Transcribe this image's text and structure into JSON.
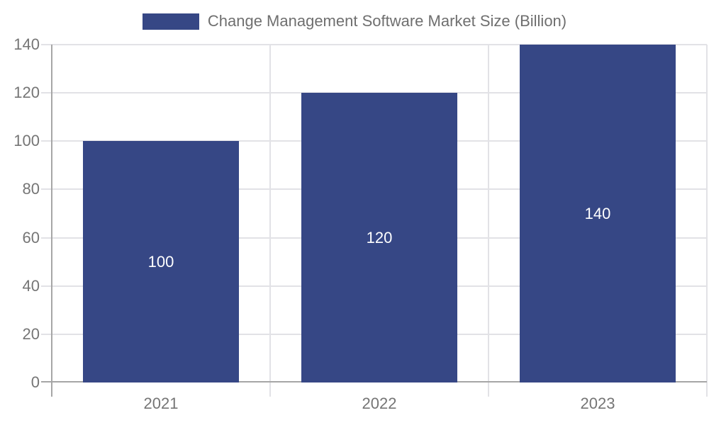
{
  "chart_data": {
    "type": "bar",
    "title": "Change Management Software Market Size (Billion)",
    "categories": [
      "2021",
      "2022",
      "2023"
    ],
    "values": [
      100,
      120,
      140
    ],
    "value_labels": [
      "100",
      "120",
      "140"
    ],
    "xlabel": "",
    "ylabel": "",
    "ylim": [
      0,
      140
    ],
    "yticks": [
      0,
      20,
      40,
      60,
      80,
      100,
      120,
      140
    ],
    "grid": true,
    "legend_position": "top-center"
  },
  "colors": {
    "bar": "#364785",
    "value_label": "#ffffff",
    "axis_text": "#757575",
    "legend_text": "#6f6f6f",
    "grid_line": "#e2e2e6",
    "axis_line": "#a6a6a6"
  }
}
